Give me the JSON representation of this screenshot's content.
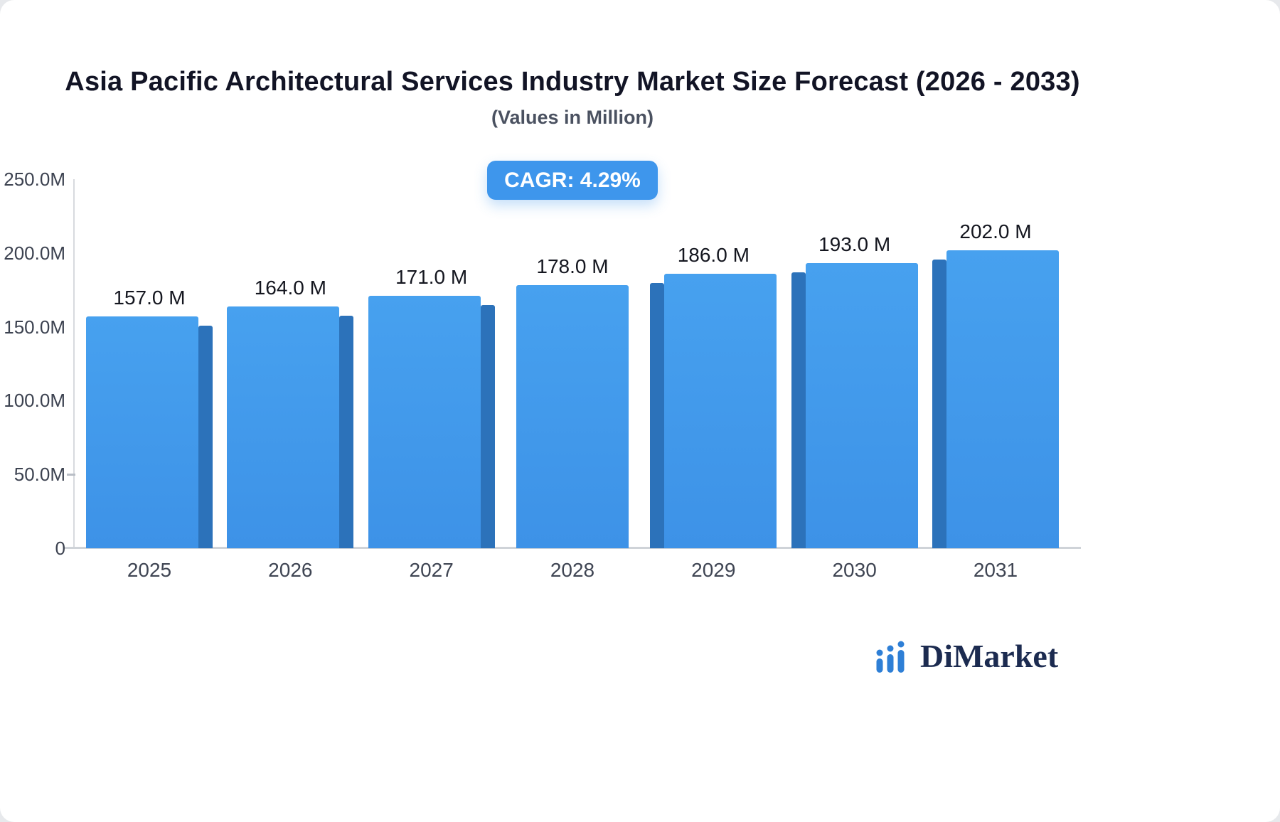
{
  "title": "Asia Pacific Architectural Services Industry Market Size Forecast (2026 - 2033)",
  "subtitle": "(Values in Million)",
  "cagr_label": "CAGR: 4.29%",
  "logo": {
    "text": "DiMarket"
  },
  "colors": {
    "bar_main_top": "#47A1EF",
    "bar_main_bottom": "#3D92E7",
    "bar_side": "#2C72BA",
    "badge": "#3E96EC",
    "axis": "#CFD3D8",
    "title_text": "#121425",
    "subtitle_text": "#4A5160",
    "logo_text": "#1C2B50",
    "logo_icon": "#2E7FD6"
  },
  "chart_data": {
    "type": "bar",
    "categories": [
      "2025",
      "2026",
      "2027",
      "2028",
      "2029",
      "2030",
      "2031"
    ],
    "values": [
      157.0,
      164.0,
      171.0,
      178.0,
      186.0,
      193.0,
      202.0
    ],
    "bar_labels": [
      "157.0 M",
      "164.0 M",
      "171.0 M",
      "178.0 M",
      "186.0 M",
      "193.0 M",
      "202.0 M"
    ],
    "title": "Asia Pacific Architectural Services Industry Market Size Forecast (2026 - 2033)",
    "xlabel": "",
    "ylabel": "Values in Million",
    "ylim": [
      0,
      250
    ],
    "y_ticks": [
      "0",
      "50.0M",
      "100.0M",
      "150.0M",
      "200.0M",
      "250.0M"
    ],
    "y_tick_values": [
      0,
      50,
      100,
      150,
      200,
      250
    ],
    "annotation": "CAGR: 4.29%",
    "legend": false,
    "grid": false
  }
}
